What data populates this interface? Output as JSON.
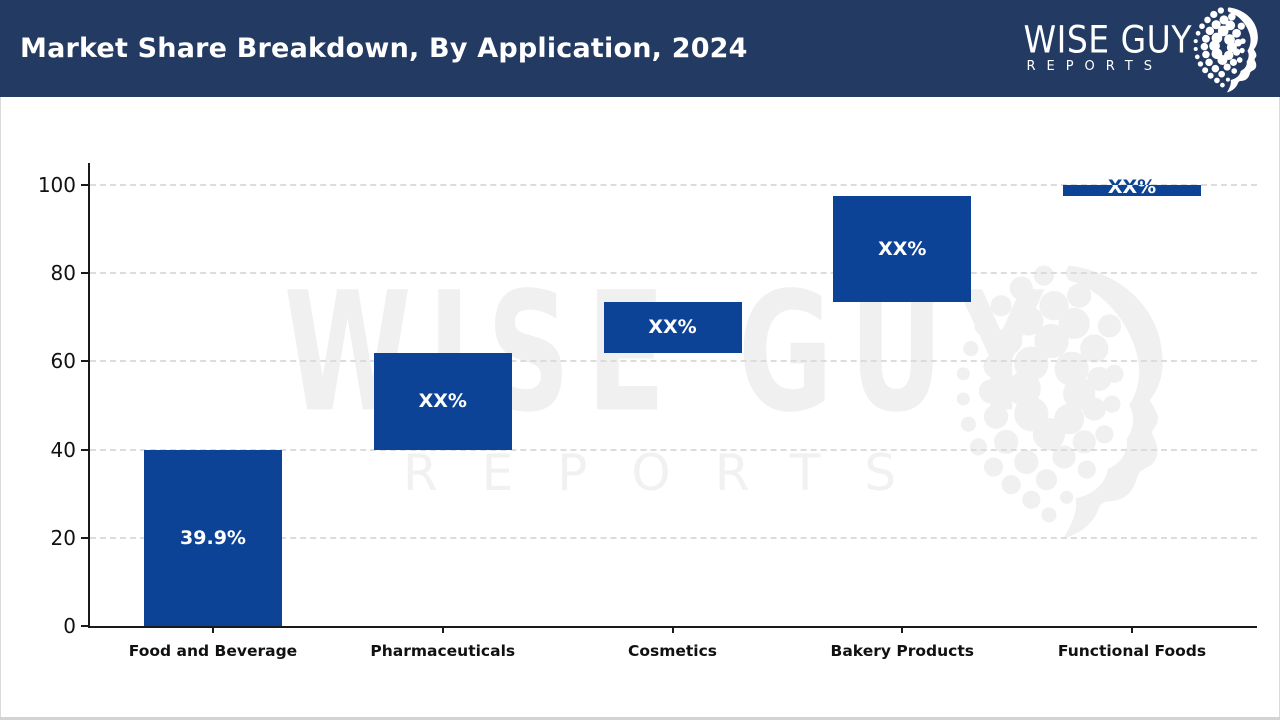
{
  "header": {
    "title": "Market Share Breakdown, By Application, 2024",
    "background": "#233a63",
    "logo": {
      "brand": "WISE GUY",
      "sub": "REPORTS"
    }
  },
  "watermark": {
    "brand": "WISE GUY",
    "sub": "REPORTS"
  },
  "chart_data": {
    "type": "bar",
    "subtype": "waterfall",
    "title": "Market Share Breakdown, By Application, 2024",
    "categories": [
      "Food and Beverage",
      "Pharmaceuticals",
      "Cosmetics",
      "Bakery Products",
      "Functional Foods"
    ],
    "series": [
      {
        "name": "Market share (%)",
        "segments": [
          {
            "start": 0,
            "end": 39.9,
            "label": "39.9%"
          },
          {
            "start": 39.9,
            "end": 62,
            "label": "XX%"
          },
          {
            "start": 62,
            "end": 73.5,
            "label": "XX%"
          },
          {
            "start": 73.5,
            "end": 97.5,
            "label": "XX%"
          },
          {
            "start": 97.5,
            "end": 100,
            "label": "XX%"
          }
        ]
      }
    ],
    "ylim": [
      0,
      100
    ],
    "yticks": [
      0,
      20,
      40,
      60,
      80,
      100
    ],
    "grid": "dashed-horizontal",
    "legend": "none",
    "bar_color": "#0d4396",
    "bar_label_color": "#ffffff",
    "axis_color": "#1a1a1a"
  }
}
